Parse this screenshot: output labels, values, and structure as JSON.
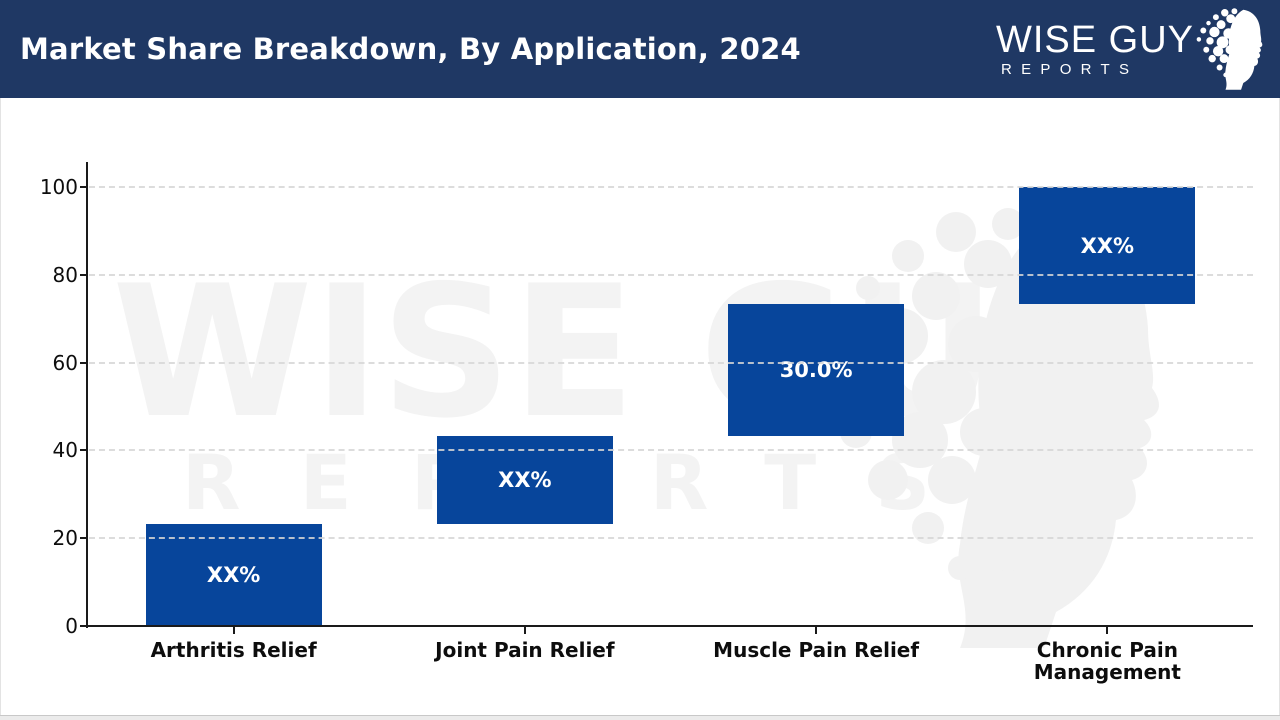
{
  "header": {
    "title": "Market Share Breakdown, By Application, 2024"
  },
  "logo": {
    "line1": "WISE GUY",
    "line2": "REPORTS"
  },
  "watermark": {
    "line1": "WISE GU",
    "line2": "REPORTS"
  },
  "chart_data": {
    "type": "bar",
    "subtype": "floating-waterfall-segments",
    "title": "Market Share Breakdown, By Application, 2024",
    "categories": [
      "Arthritis Relief",
      "Joint Pain Relief",
      "Muscle Pain Relief",
      "Chronic Pain Management"
    ],
    "category_lines": [
      [
        "Arthritis Relief"
      ],
      [
        "Joint Pain Relief"
      ],
      [
        "Muscle Pain Relief"
      ],
      [
        "Chronic Pain",
        "Management"
      ]
    ],
    "segments": [
      {
        "category": "Arthritis Relief",
        "start": 0,
        "end": 23.3,
        "label": "XX%"
      },
      {
        "category": "Joint Pain Relief",
        "start": 23.3,
        "end": 43.3,
        "label": "XX%"
      },
      {
        "category": "Muscle Pain Relief",
        "start": 43.3,
        "end": 73.3,
        "label": "30.0%"
      },
      {
        "category": "Chronic Pain Management",
        "start": 73.3,
        "end": 100,
        "label": "XX%"
      }
    ],
    "xlabel": "",
    "ylabel": "",
    "ylim": [
      0,
      100
    ],
    "yticks": [
      0,
      20,
      40,
      60,
      80,
      100
    ],
    "grid": "horizontal-dashed",
    "legend": "none",
    "bar_color": "#07459B",
    "bar_label_color": "#FFFFFF"
  },
  "colors": {
    "header_bg": "#1F3864",
    "bar": "#07459B",
    "grid": "#D6D6D6",
    "axis": "#1A1A1A",
    "watermark": "#F2F2F2",
    "title_text": "#FFFFFF"
  }
}
